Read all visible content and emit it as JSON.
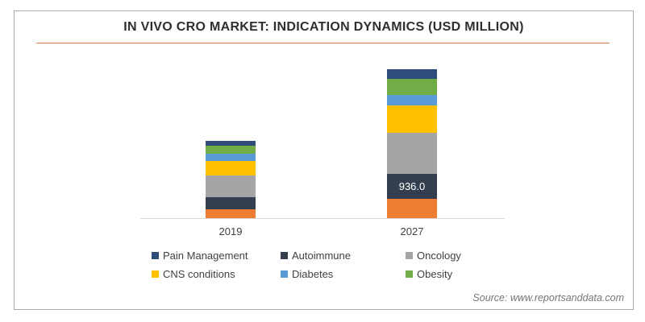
{
  "header": {
    "title": "IN VIVO CRO MARKET: INDICATION DYNAMICS (USD MILLION)"
  },
  "chart_data": {
    "type": "bar",
    "stacked": true,
    "unit": "USD Million",
    "title": "IN VIVO CRO MARKET: INDICATION DYNAMICS (USD MILLION)",
    "categories": [
      "2019",
      "2027"
    ],
    "series": [
      {
        "name": "",
        "in_legend": false,
        "color": "#ED7D31",
        "values": [
          330,
          710
        ],
        "labels": [
          "",
          ""
        ]
      },
      {
        "name": "Autoimmune",
        "in_legend": true,
        "color": "#333F4F",
        "values": [
          450,
          936
        ],
        "labels": [
          "",
          "936.0"
        ]
      },
      {
        "name": "Oncology",
        "in_legend": true,
        "color": "#A5A5A5",
        "values": [
          810,
          1550
        ],
        "labels": [
          "",
          ""
        ]
      },
      {
        "name": "CNS conditions",
        "in_legend": true,
        "color": "#FFC000",
        "values": [
          530,
          1030
        ],
        "labels": [
          "",
          ""
        ]
      },
      {
        "name": "Diabetes",
        "in_legend": true,
        "color": "#5B9BD5",
        "values": [
          270,
          400
        ],
        "labels": [
          "",
          ""
        ]
      },
      {
        "name": "Obesity",
        "in_legend": true,
        "color": "#70AD47",
        "values": [
          290,
          590
        ],
        "labels": [
          "",
          ""
        ]
      },
      {
        "name": "Pain Management",
        "in_legend": true,
        "color": "#2E4D7B",
        "values": [
          190,
          360
        ],
        "labels": [
          "",
          ""
        ]
      }
    ],
    "data_labels_visible": [
      "936.0"
    ],
    "axis": {
      "x_labels": [
        "2019",
        "2027"
      ],
      "y_axis_visible": false,
      "grid": false
    },
    "legend_position": "bottom"
  },
  "legend": {
    "items": [
      {
        "label": "Pain Management",
        "color": "#2E4D7B"
      },
      {
        "label": "Autoimmune",
        "color": "#333F4F"
      },
      {
        "label": "Oncology",
        "color": "#A5A5A5"
      },
      {
        "label": "CNS conditions",
        "color": "#FFC000"
      },
      {
        "label": "Diabetes",
        "color": "#5B9BD5"
      },
      {
        "label": "Obesity",
        "color": "#70AD47"
      }
    ]
  },
  "footer": {
    "source_text": "Source: www.reportsanddata.com"
  },
  "colors": {
    "title_underline": "#DF8244",
    "axis_line": "#D9D9D9",
    "frame_border": "#A9A9A9",
    "label_text": "#404040",
    "source_text": "#757575"
  }
}
